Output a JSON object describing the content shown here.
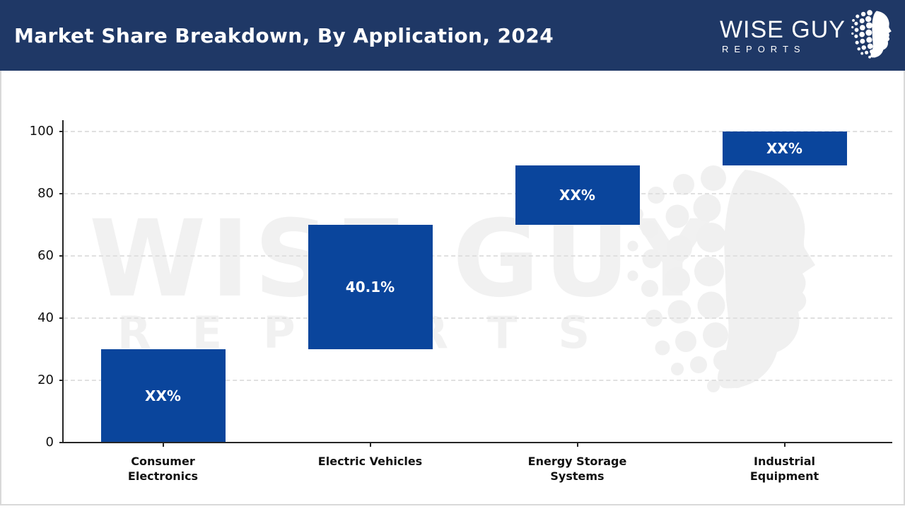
{
  "header": {
    "title": "Market Share Breakdown, By Application, 2024",
    "bg_color": "#1f3866",
    "logo": {
      "wordmark": "WISE GUY",
      "subtext": "REPORTS"
    }
  },
  "watermark": {
    "wordmark": "WISE GUY",
    "subtext": "REPORTS",
    "color": "#f1f1f1"
  },
  "chart_data": {
    "type": "bar",
    "variant": "stacked-waterfall-segments",
    "title": "Market Share Breakdown, By Application, 2024",
    "categories": [
      "Consumer Electronics",
      "Electric Vehicles",
      "Energy Storage Systems",
      "Industrial Equipment"
    ],
    "segments": [
      {
        "category": "Consumer Electronics",
        "start": 0,
        "end": 30,
        "label": "XX%"
      },
      {
        "category": "Electric Vehicles",
        "start": 30,
        "end": 70.1,
        "label": "40.1%"
      },
      {
        "category": "Energy Storage Systems",
        "start": 70.1,
        "end": 89,
        "label": "XX%"
      },
      {
        "category": "Industrial Equipment",
        "start": 89,
        "end": 100,
        "label": "XX%"
      }
    ],
    "yticks": [
      0,
      20,
      40,
      60,
      80,
      100
    ],
    "ylim": [
      0,
      104
    ],
    "xlabel": "",
    "ylabel": "",
    "grid": "horizontal-dashed",
    "legend": false,
    "bar_color": "#0a459c",
    "bar_label_color": "#ffffff"
  }
}
